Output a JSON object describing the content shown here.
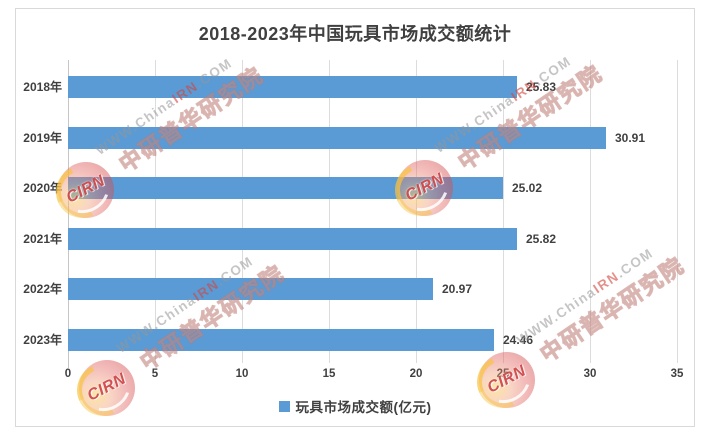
{
  "chart_data": {
    "type": "bar",
    "orientation": "horizontal",
    "title": "2018-2023年中国玩具市场成交额统计",
    "categories": [
      "2018年",
      "2019年",
      "2020年",
      "2021年",
      "2022年",
      "2023年"
    ],
    "values": [
      25.83,
      30.91,
      25.02,
      25.82,
      20.97,
      24.46
    ],
    "value_labels": [
      "25.83",
      "30.91",
      "25.02",
      "25.82",
      "20.97",
      "24.46"
    ],
    "series_name": "玩具市场成交额(亿元)",
    "legend": "玩具市场成交额(亿元)",
    "legend_position": "bottom",
    "x_ticks": [
      "0",
      "5",
      "10",
      "15",
      "20",
      "25",
      "30",
      "35"
    ],
    "xlim": [
      0,
      35
    ],
    "xlabel": "",
    "ylabel": "",
    "grid": true,
    "bar_color": "#5b9bd5",
    "title_color": "#404040",
    "label_color": "#404040",
    "gridline_color": "#dcdcdc"
  },
  "watermark": {
    "logo_text": "CIRN",
    "url_prefix": "WWW.China",
    "url_highlight": "IRN",
    "url_suffix": ".COM",
    "cn_text": "中研普华研究院"
  }
}
